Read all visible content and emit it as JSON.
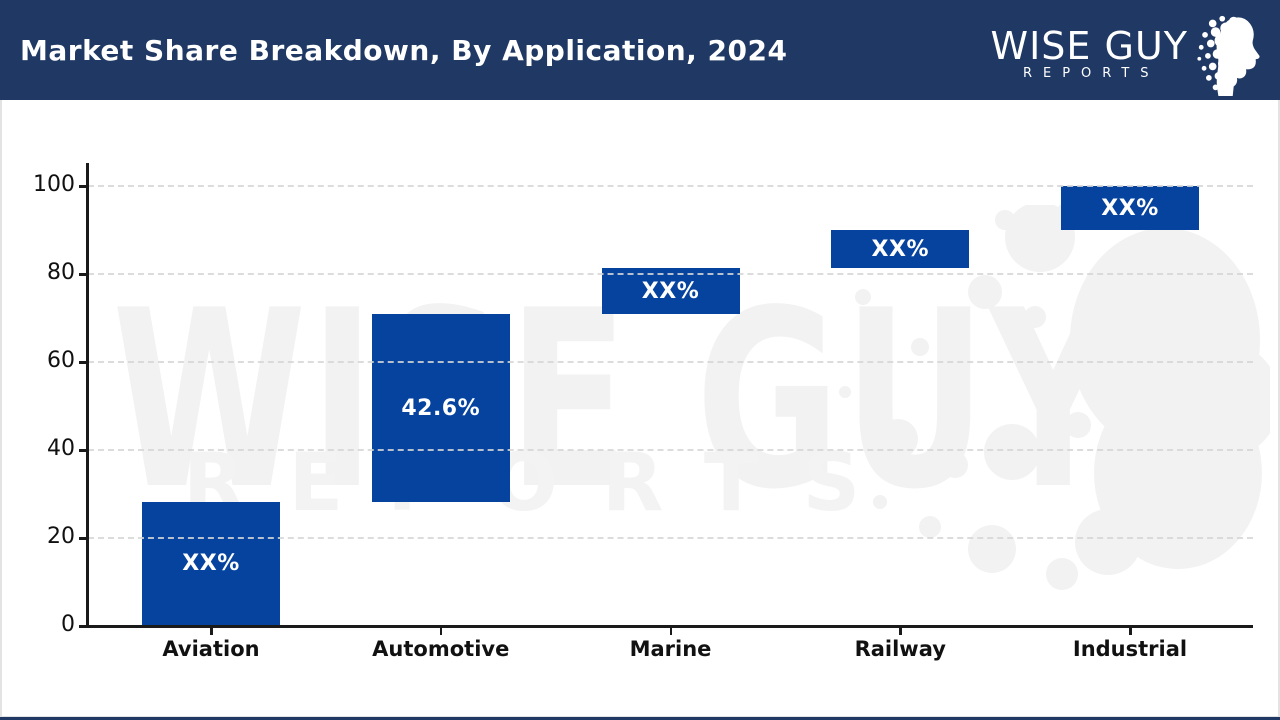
{
  "header": {
    "title": "Market Share Breakdown, By Application, 2024",
    "bg_color": "#1f3864",
    "logo": {
      "line1": "WISE GUY",
      "line2": "REPORTS"
    }
  },
  "watermark": {
    "line1": "WISE GUY",
    "line2": "REPORTS"
  },
  "chart_data": {
    "type": "bar",
    "variant": "waterfall-segments",
    "title": "Market Share Breakdown, By Application, 2024",
    "categories": [
      "Aviation",
      "Automotive",
      "Marine",
      "Railway",
      "Industrial"
    ],
    "series": [
      {
        "name": "Market Share (%)",
        "segments": [
          {
            "category": "Aviation",
            "start": 0,
            "end": 28.2,
            "value": 28.2,
            "label": "XX%"
          },
          {
            "category": "Automotive",
            "start": 28.2,
            "end": 70.8,
            "value": 42.6,
            "label": "42.6%"
          },
          {
            "category": "Marine",
            "start": 70.8,
            "end": 81.3,
            "value": 10.5,
            "label": "XX%"
          },
          {
            "category": "Railway",
            "start": 81.3,
            "end": 90.0,
            "value": 8.7,
            "label": "XX%"
          },
          {
            "category": "Industrial",
            "start": 90.0,
            "end": 100.0,
            "value": 10.0,
            "label": "XX%"
          }
        ]
      }
    ],
    "xlabel": "",
    "ylabel": "",
    "ylim": [
      0,
      100
    ],
    "yticks": [
      0,
      20,
      40,
      60,
      80,
      100
    ],
    "grid": "dashed-horizontal",
    "legend": "none",
    "bar_color": "#06439e",
    "axis_color": "#1a1a1a",
    "gridline_color": "#d6d6d6",
    "value_label_color": "#ffffff"
  }
}
